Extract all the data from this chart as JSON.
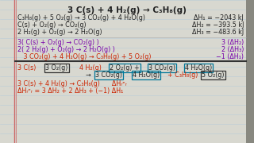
{
  "bg_color": "#d8d8d0",
  "paper_color": "#f0ede0",
  "line_color": "#b8ccd8",
  "margin_color": "#cc6666",
  "title": "3 C(s) + 4 H₂(g) → C₃H₈(g)",
  "eq1_left": "C₃H₈(g) + 5 O₂(g) → 3 CO₂(g) + 4 H₂O(g)",
  "eq1_right": "ΔH₁ = −2043 kJ",
  "eq2_left": "C(s) + O₂(g) → CO₂(g)",
  "eq2_right": "ΔH₂ = −393.5 kJ",
  "eq3_left": "2 H₂(g) + O₂(g) → 2 H₂O(g)",
  "eq3_right": "ΔH₃ = −483.6 kJ",
  "mid1_left": "3( C(s) + O₂(g) → CO₂(g) )",
  "mid1_right": "3 (ΔH₂)",
  "mid2_left": "2( 2 H₂(g) + O₂(g) → 2 H₂O(g) )",
  "mid2_right": "2 (ΔH₃)",
  "mid3_left": "   3 CO₂(g) + 4 H₂O(g) → C₃H₈(g) + 5 O₂(g)",
  "mid3_right": "−1 (ΔH₁)",
  "result1": "3 C(s) + 4 H₂(g) → C₃H₈(g)      ΔHᵣᵉᵣ",
  "result2": "ΔHᵣᵉᵣ = 3 ΔH₂ + 2 ΔH₃ + (−1) ΔH₁",
  "dark_text": "#222222",
  "purple_text": "#7700aa",
  "red_text": "#cc2200",
  "box_dark": "#333333",
  "box_teal": "#007799"
}
